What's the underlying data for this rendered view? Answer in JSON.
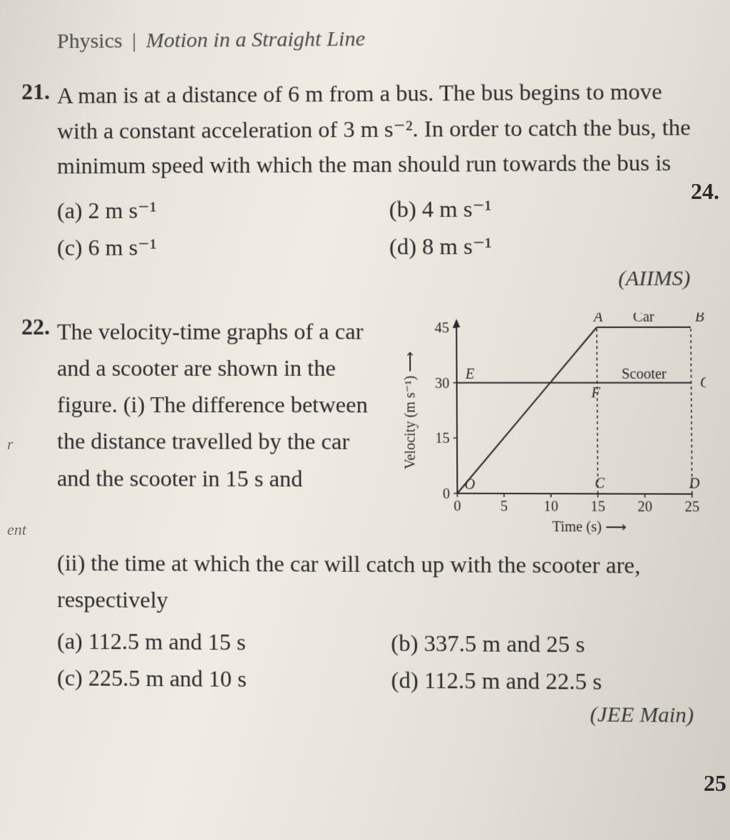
{
  "chapter": {
    "subject": "Physics",
    "title": "Motion in a Straight Line"
  },
  "q21": {
    "number": "21.",
    "text": "A man is at a distance of 6 m from a bus. The bus begins to move with a constant acceleration of 3 m s⁻². In order to catch the bus, the minimum speed with which the man should run towards the bus is",
    "options": {
      "a": "2 m s⁻¹",
      "b": "4 m s⁻¹",
      "c": "6 m s⁻¹",
      "d": "8 m s⁻¹"
    },
    "source": "(AIIMS)"
  },
  "q22": {
    "number": "22.",
    "text_part1": "The velocity-time graphs of a car and a scooter are shown in the figure. (i) The difference between the distance travelled by the car and the scooter in 15 s and",
    "text_part2": "(ii) the time at which the car will catch up with the scooter are, respectively",
    "options": {
      "a": "112.5 m and 15 s",
      "b": "337.5 m and 25 s",
      "c": "225.5 m and 10 s",
      "d": "112.5 m and 22.5 s"
    },
    "source": "(JEE Main)",
    "chart": {
      "type": "line",
      "xlabel": "Time (s) ⟶",
      "ylabel": "Velocity (m s⁻¹) ⟶",
      "xlim": [
        0,
        25
      ],
      "ylim": [
        0,
        45
      ],
      "xticks": [
        0,
        5,
        10,
        15,
        20,
        25
      ],
      "yticks": [
        0,
        15,
        30,
        45
      ],
      "car_line": {
        "points": [
          [
            0,
            0
          ],
          [
            15,
            45
          ],
          [
            25,
            45
          ]
        ],
        "label": "Car",
        "color": "#2a2a2a"
      },
      "scooter_line": {
        "points": [
          [
            0,
            30
          ],
          [
            25,
            30
          ]
        ],
        "label": "Scooter",
        "color": "#2a2a2a"
      },
      "point_labels": {
        "O": [
          0,
          0
        ],
        "E": [
          0,
          30
        ],
        "A": [
          15,
          45
        ],
        "B": [
          25,
          45
        ],
        "F": [
          15,
          30
        ],
        "G": [
          25,
          30
        ],
        "C": [
          15,
          0
        ],
        "D": [
          25,
          0
        ]
      },
      "axis_color": "#2a2a2a",
      "tick_fontsize": 20,
      "label_fontsize": 20
    }
  },
  "margin": {
    "q24": "24.",
    "q25": "25"
  },
  "side_text": {
    "r": "r",
    "ent": "ent"
  }
}
